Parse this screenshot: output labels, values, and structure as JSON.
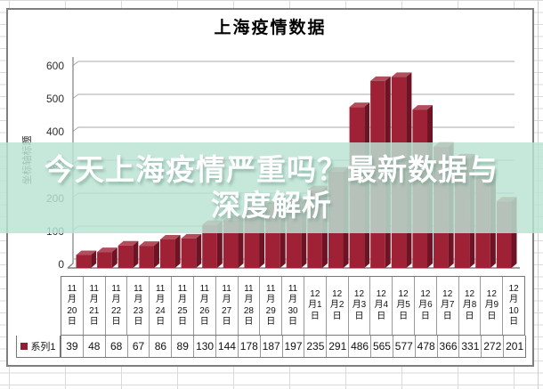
{
  "chart": {
    "title": "上海疫情数据",
    "y_axis_title": "坐标轴标题",
    "legend": {
      "label": "系列1",
      "marker_color": "#8e1f30"
    },
    "y_ticks": [
      600,
      500,
      400,
      300,
      200,
      100,
      0
    ]
  },
  "overlay": {
    "line1": "今天上海疫情严重吗？最新数据与",
    "line2": "深度解析",
    "bg_color": "rgba(186,227,212,0.83)",
    "text_color": "#ffffff"
  },
  "colors": {
    "bar_front": "#9e2136",
    "bar_side": "#6d1424",
    "bar_top": "#b24d5c",
    "gridline": "#a8a8a8",
    "axis": "#808080",
    "chart_border": "#7f7f7f"
  },
  "chart_data": {
    "type": "bar",
    "title": "上海疫情数据",
    "ylabel": "坐标轴标题",
    "ylim": [
      0,
      600
    ],
    "ytick_step": 100,
    "grid": true,
    "legend_position": "bottom-left data table",
    "categories": [
      "11月20日",
      "11月21日",
      "11月22日",
      "11月23日",
      "11月24日",
      "11月25日",
      "11月26日",
      "11月27日",
      "11月28日",
      "11月29日",
      "11月30日",
      "12月1日",
      "12月2日",
      "12月3日",
      "12月4日",
      "12月5日",
      "12月6日",
      "12月7日",
      "12月8日",
      "12月9日",
      "12月10日"
    ],
    "categories_display": [
      [
        "11",
        "月",
        "20",
        "日"
      ],
      [
        "11",
        "月",
        "21",
        "日"
      ],
      [
        "11",
        "月",
        "22",
        "日"
      ],
      [
        "11",
        "月",
        "23",
        "日"
      ],
      [
        "11",
        "月",
        "24",
        "日"
      ],
      [
        "11",
        "月",
        "25",
        "日"
      ],
      [
        "11",
        "月",
        "26",
        "日"
      ],
      [
        "11",
        "月",
        "27",
        "日"
      ],
      [
        "11",
        "月",
        "28",
        "日"
      ],
      [
        "11",
        "月",
        "29",
        "日"
      ],
      [
        "11",
        "月",
        "30",
        "日"
      ],
      [
        "12",
        "月1",
        "日"
      ],
      [
        "12",
        "月2",
        "日"
      ],
      [
        "12",
        "月3",
        "日"
      ],
      [
        "12",
        "月4",
        "日"
      ],
      [
        "12",
        "月5",
        "日"
      ],
      [
        "12",
        "月6",
        "日"
      ],
      [
        "12",
        "月7",
        "日"
      ],
      [
        "12",
        "月8",
        "日"
      ],
      [
        "12",
        "月9",
        "日"
      ],
      [
        "12",
        "月",
        "10",
        "日"
      ]
    ],
    "series": [
      {
        "name": "系列1",
        "values": [
          39,
          48,
          68,
          67,
          86,
          89,
          130,
          144,
          178,
          187,
          197,
          235,
          291,
          486,
          565,
          577,
          478,
          366,
          331,
          272,
          201
        ]
      }
    ]
  }
}
